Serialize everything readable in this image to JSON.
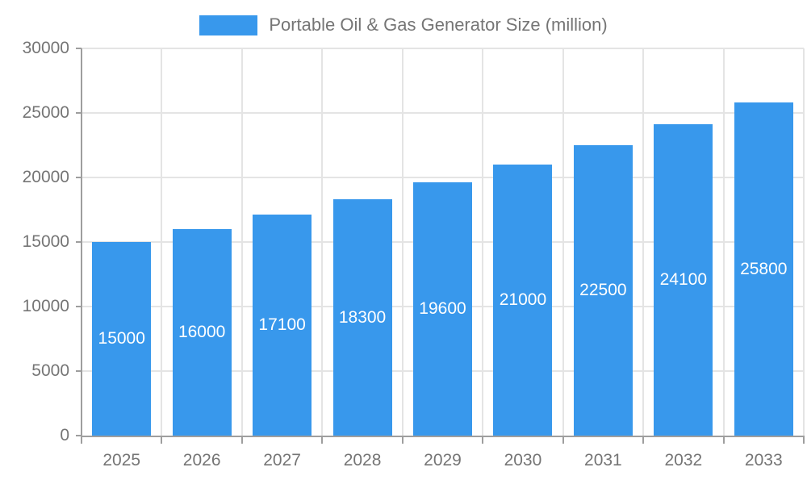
{
  "legend": {
    "label": "Portable Oil & Gas Generator Size (million)"
  },
  "colors": {
    "bar": "#3898ec",
    "grid": "#e4e4e4",
    "axis": "#9e9e9e",
    "tick": "#9e9e9e",
    "axis_label": "#757575",
    "value_label": "#ffffff",
    "background": "#ffffff"
  },
  "chart_data": {
    "type": "bar",
    "title": "Portable Oil & Gas Generator Size (million)",
    "categories": [
      "2025",
      "2026",
      "2027",
      "2028",
      "2029",
      "2030",
      "2031",
      "2032",
      "2033"
    ],
    "series": [
      {
        "name": "Portable Oil & Gas Generator Size (million)",
        "values": [
          15000,
          16000,
          17100,
          18300,
          19600,
          21000,
          22500,
          24100,
          25800
        ]
      }
    ],
    "xlabel": "",
    "ylabel": "",
    "ylim": [
      0,
      30000
    ],
    "yticks": [
      0,
      5000,
      10000,
      15000,
      20000,
      25000,
      30000
    ],
    "grid": true,
    "legend_position": "top",
    "value_labels_position": "inside-center"
  }
}
